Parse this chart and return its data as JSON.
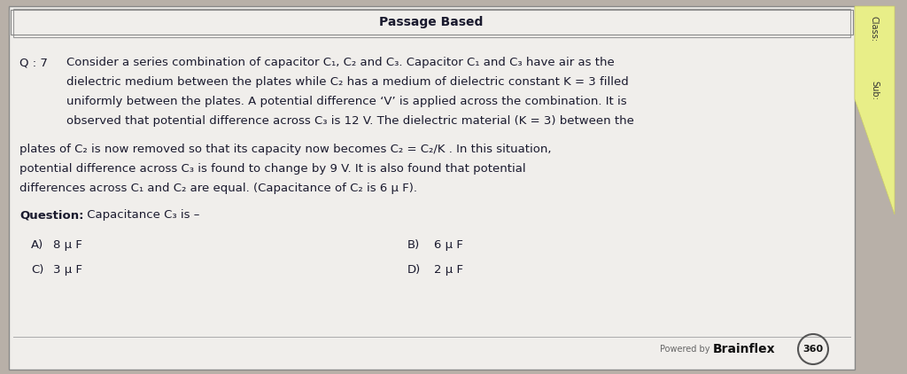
{
  "background_color": "#b8b0a8",
  "card_color": "#f0eeeb",
  "header_text": "Passage Based",
  "header_bg": "#e8e5e0",
  "question_number": "Q : 7",
  "question_text_line1": "Consider a series combination of capacitor C₁, C₂ and C₃. Capacitor C₁ and C₃ have air as the",
  "question_text_line2": "dielectric medium between the plates while C₂ has a medium of dielectric constant K = 3 filled",
  "question_text_line3": "uniformly between the plates. A potential difference ‘V’ is applied across the combination. It is",
  "question_text_line4": "observed that potential difference across C₃ is 12 V. The dielectric material (K = 3) between the",
  "passage_line1": "plates of C₂ is now removed so that its capacity now becomes C₂ = C₂/K . In this situation,",
  "passage_line2": "potential difference across C₃ is found to change by 9 V. It is also found that potential",
  "passage_line3": "differences across C₁ and C₂ are equal. (Capacitance of C₂ is 6 μ F).",
  "question_bold": "Question:",
  "question_end": " Capacitance C₃ is –",
  "option_A_label": "A)",
  "option_A_val": "8 μ F",
  "option_B_label": "B)",
  "option_B_val": "6 μ F",
  "option_C_label": "C)",
  "option_C_val": "3 μ F",
  "option_D_label": "D)",
  "option_D_val": "2 μ F",
  "powered_by": "Powered by",
  "brand": "Brainflex",
  "brand_num": "360",
  "right_tab_color": "#e8ee88",
  "right_tab_text1": "Class:",
  "right_tab_text2": "Sub:",
  "text_color": "#1a1a2e",
  "border_color": "#888888"
}
